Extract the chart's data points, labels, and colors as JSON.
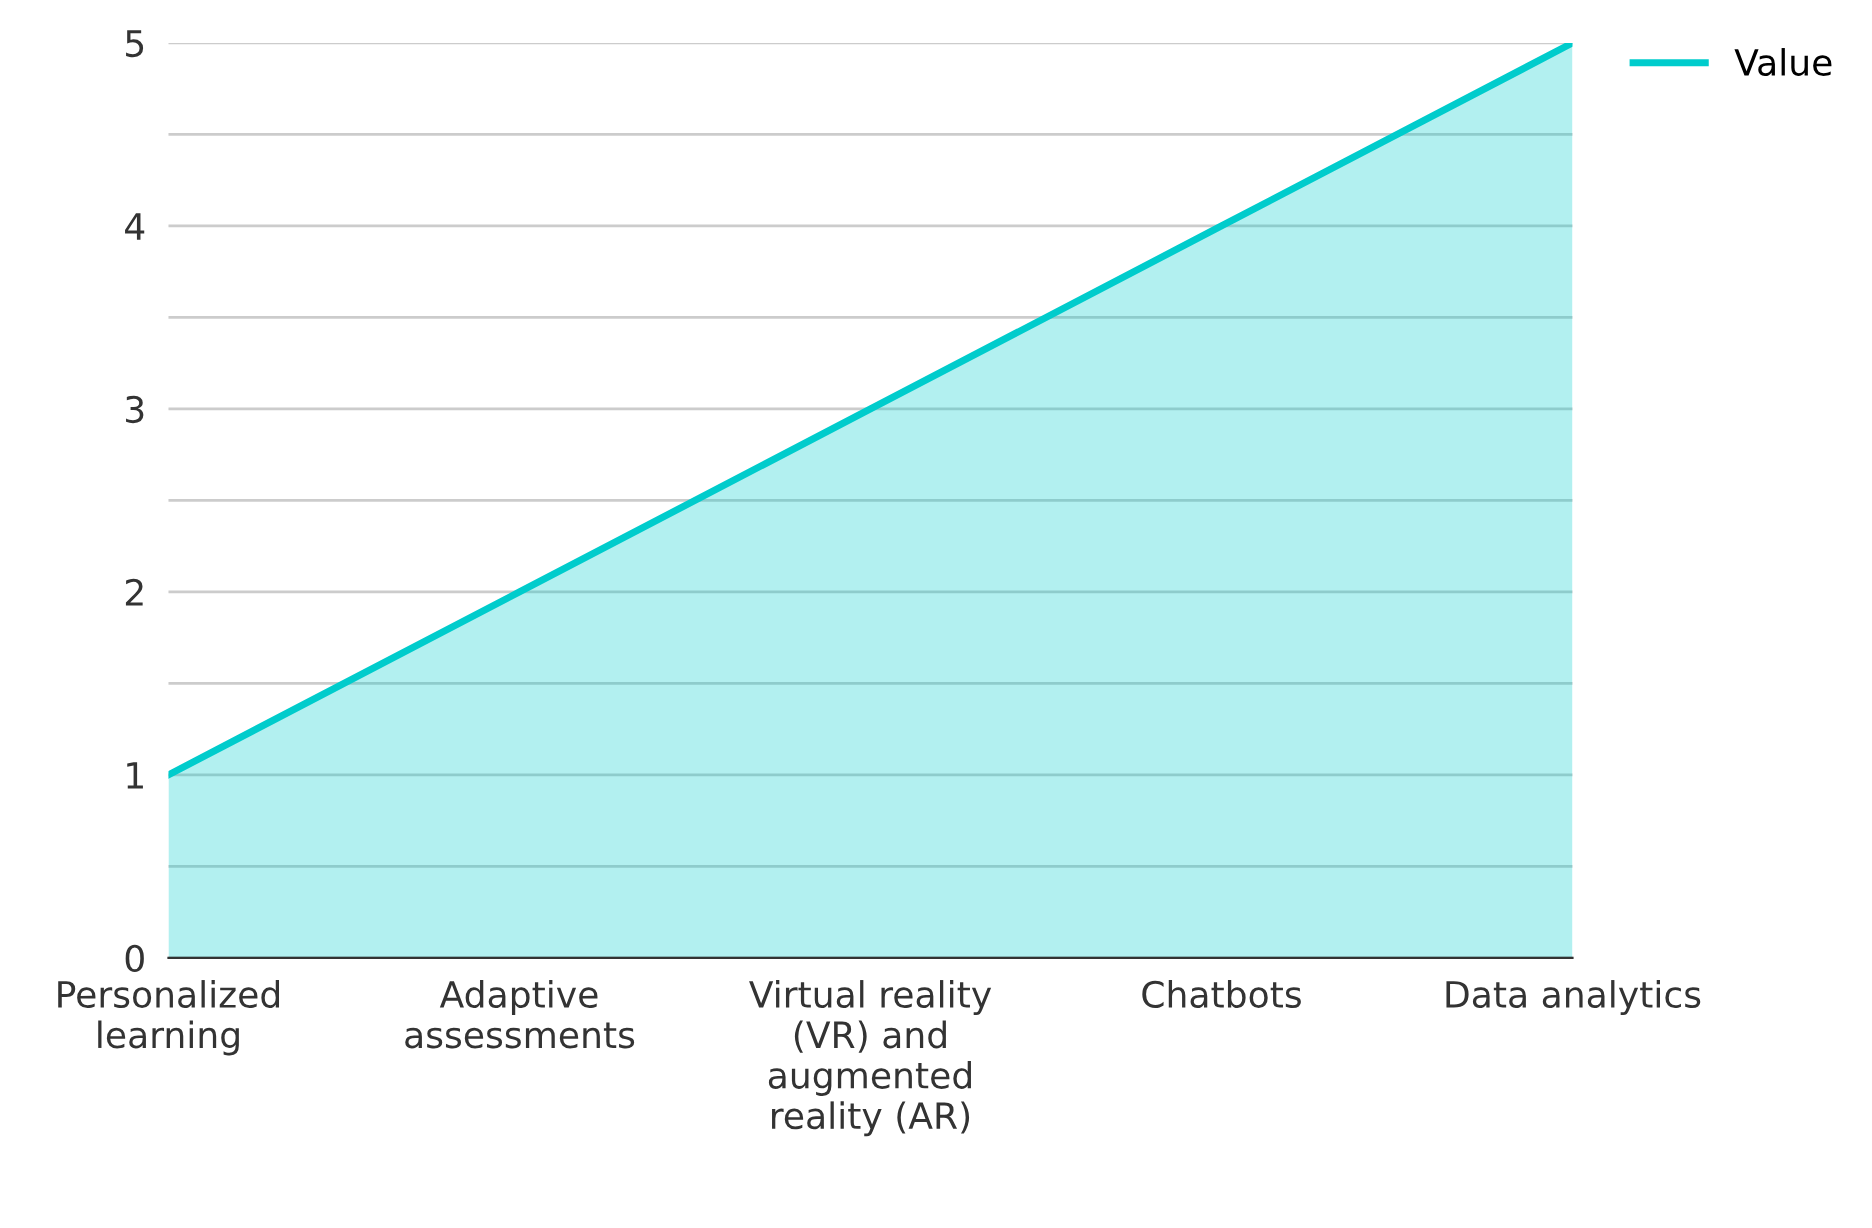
{
  "chart_data": {
    "type": "area",
    "categories": [
      "Personalized learning",
      "Adaptive assessments",
      "Virtual reality (VR) and augmented reality (AR)",
      "Chatbots",
      "Data analytics"
    ],
    "series": [
      {
        "name": "Value",
        "color": "#00cccc",
        "values": [
          1,
          2,
          3,
          4,
          5
        ]
      }
    ],
    "ylim": [
      0,
      5
    ],
    "yticks": [
      0,
      {
        "value": 0.5,
        "label": null
      },
      1,
      {
        "value": 1.5,
        "label": null
      },
      2,
      {
        "value": 2.5,
        "label": null
      },
      3,
      {
        "value": 3.5,
        "label": null
      },
      4,
      {
        "value": 4.5,
        "label": null
      },
      5
    ],
    "grid": "y",
    "legend": "top right"
  }
}
